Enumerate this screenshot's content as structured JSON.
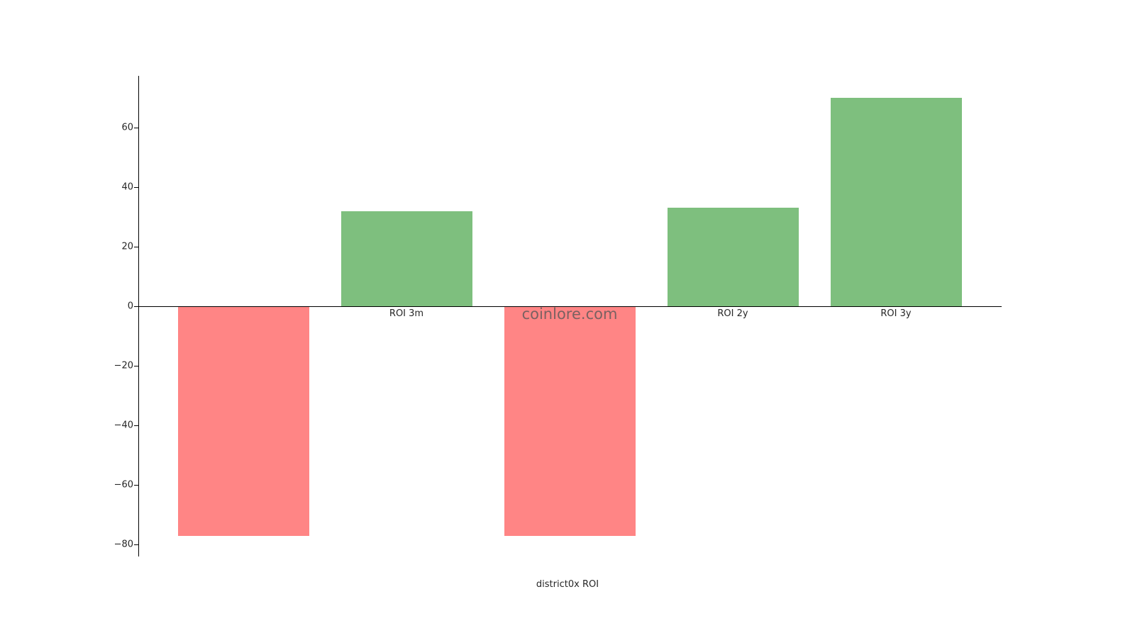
{
  "chart_data": {
    "type": "bar",
    "title": "district0x ROI",
    "watermark": "coinlore.com",
    "categories": [
      "",
      "ROI 3m",
      "",
      "ROI 2y",
      "ROI 3y"
    ],
    "values": [
      -77,
      32,
      -77,
      33,
      70
    ],
    "yticks": [
      60,
      40,
      20,
      0,
      -20,
      -40,
      -60,
      -80
    ],
    "ylim": [
      -84,
      77
    ],
    "xlabel": "",
    "ylabel": "",
    "grid": false,
    "legend": "none",
    "positive_color": "#7ebf7e",
    "negative_color": "#ff8585",
    "axis_color": "#000000",
    "text_color": "#262626",
    "watermark_color": "#595959"
  }
}
